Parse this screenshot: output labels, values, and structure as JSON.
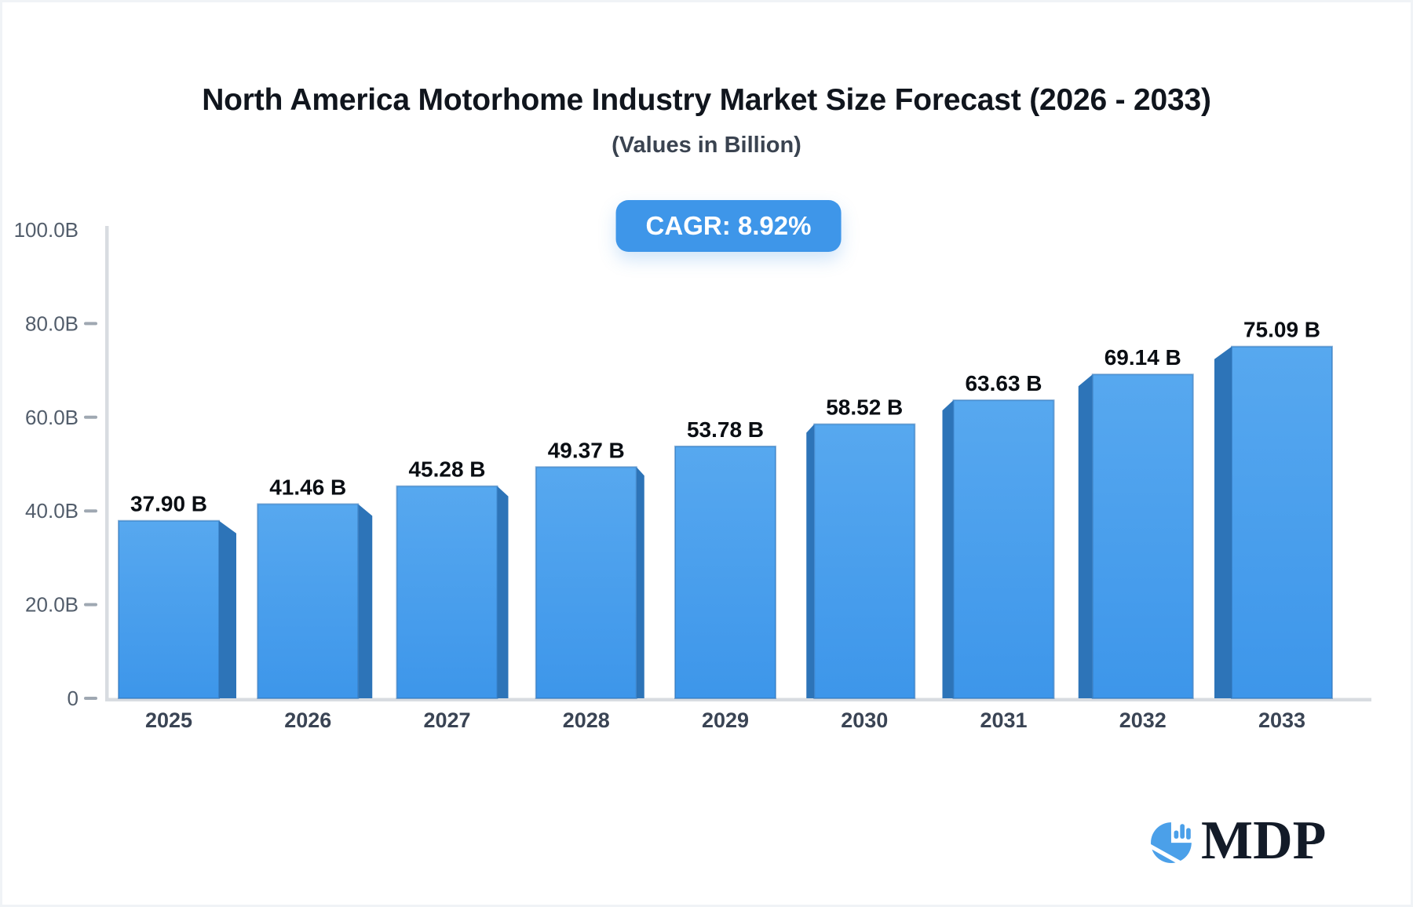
{
  "header": {
    "title": "North America Motorhome Industry Market Size Forecast (2026 - 2033)",
    "subtitle": "(Values in Billion)",
    "badge": "CAGR: 8.92%"
  },
  "footer": {
    "logo_text": "MDP"
  },
  "colors": {
    "accent": "#3e96e9",
    "badge_bg": "#3e96e9",
    "badge_text": "#ffffff",
    "bar_face_top": "#57a8ef",
    "bar_face_bottom": "#3d96ea",
    "bar_edge": "#2f73b6",
    "bar_side": "#2d74b8",
    "axis_line": "#d8dce1",
    "tick_dash": "#9fa8b2",
    "y_label": "#525d6b",
    "x_label": "#3a4454",
    "value_label": "#0a0e13",
    "logo_blue": "#4ba0e9",
    "logo_text_color": "#131b28"
  },
  "chart_data": {
    "type": "bar",
    "title": "North America Motorhome Industry Market Size Forecast (2026 - 2033)",
    "subtitle": "(Values in Billion)",
    "cagr_badge": "CAGR: 8.92%",
    "categories": [
      "2025",
      "2026",
      "2027",
      "2028",
      "2029",
      "2030",
      "2031",
      "2032",
      "2033"
    ],
    "values": [
      37.9,
      41.46,
      45.28,
      49.37,
      53.78,
      58.52,
      63.63,
      69.14,
      75.09
    ],
    "value_labels": [
      "37.90 B",
      "41.46 B",
      "45.28 B",
      "49.37 B",
      "53.78 B",
      "58.52 B",
      "63.63 B",
      "69.14 B",
      "75.09 B"
    ],
    "unit": "Billion",
    "xlabel": "",
    "ylabel": "",
    "ylim": [
      0,
      100
    ],
    "y_ticks": [
      {
        "value": 100,
        "label": "100.0B"
      },
      {
        "value": 80,
        "label": "80.0B"
      },
      {
        "value": 60,
        "label": "60.0B"
      },
      {
        "value": 40,
        "label": "40.0B"
      },
      {
        "value": 20,
        "label": "20.0B"
      },
      {
        "value": 0,
        "label": "0"
      }
    ],
    "grid": false,
    "legend_position": "none",
    "bar_style": "3d-beveled, perspective toward center bar (2029)"
  }
}
